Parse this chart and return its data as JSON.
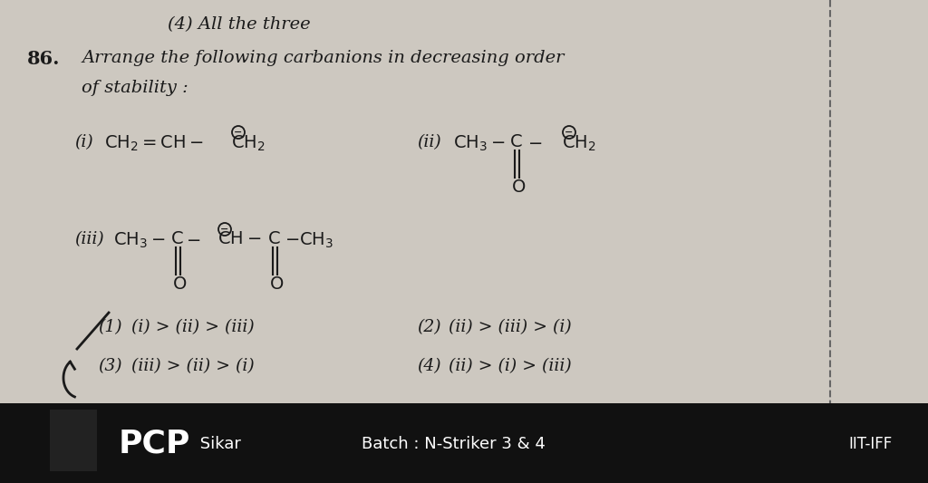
{
  "bg_color": "#cdc8c0",
  "text_color": "#1a1a1a",
  "title_line1": "(4) All the three",
  "q_number": "86.",
  "q_text1": "Arrange the following carbanions in decreasing order",
  "q_text2": "of stability :",
  "footer_bg": "#111111",
  "footer_pcp": "PCP",
  "footer_sikar": " Sikar",
  "footer_batch": "Batch : N-Striker 3 & 4",
  "footer_iit": "IIT-IFF",
  "dashed_line_x": 0.895,
  "opt1": "(1)(i) > (ii) > (iii)",
  "opt2": "(2)(ii) > (iii) > (i)",
  "opt3": "(3)(iii) > (ii) > (i)",
  "opt4": "(4)(ii) > (i) > (iii)"
}
